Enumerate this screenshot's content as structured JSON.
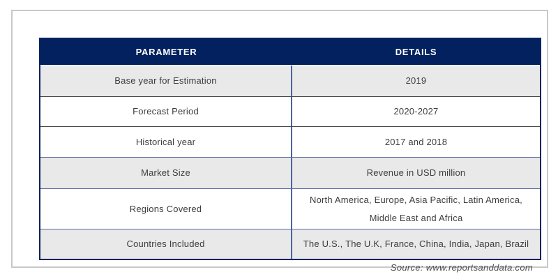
{
  "chart_data": {
    "type": "table",
    "columns": [
      "PARAMETER",
      "DETAILS"
    ],
    "rows": [
      {
        "parameter": "Base year for Estimation",
        "details": "2019"
      },
      {
        "parameter": "Forecast Period",
        "details": "2020-2027"
      },
      {
        "parameter": "Historical year",
        "details": "2017 and 2018"
      },
      {
        "parameter": "Market Size",
        "details": "Revenue in USD million"
      },
      {
        "parameter": "Regions Covered",
        "details": "North America, Europe, Asia Pacific, Latin America, Middle East and Africa"
      },
      {
        "parameter": "Countries Included",
        "details": "The U.S., The  U.K, France, China, India, Japan, Brazil"
      }
    ],
    "source": "Source: www.reportsanddata.com",
    "layout": {
      "legend": "none",
      "grid": "row-borders",
      "header_position": "top"
    },
    "colors": {
      "header_bg": "#03215e",
      "header_text": "#ffffff",
      "row_alt_bg": "#e9e9e9",
      "row_bg": "#ffffff",
      "column_divider": "#4b63a0",
      "table_border": "#072260",
      "card_border": "#c9c9c9",
      "body_text": "#3d3d3d",
      "source_text": "#4c4c4c"
    }
  }
}
